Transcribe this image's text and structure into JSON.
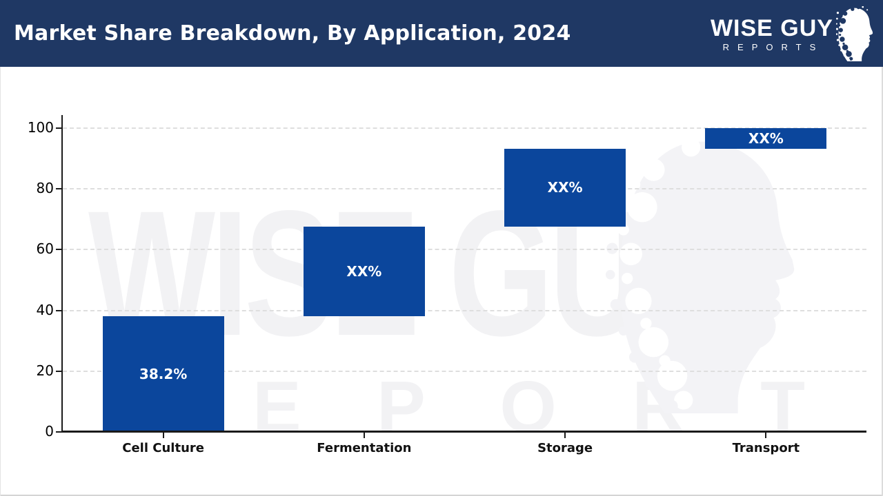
{
  "header": {
    "title": "Market Share Breakdown, By Application, 2024",
    "bg_color": "#1f3864",
    "logo": {
      "line1": "WISE GUY",
      "line2": "REPORTS"
    }
  },
  "watermark": {
    "line1": "WISE GUY",
    "line2": "REPORTS"
  },
  "chart_data": {
    "type": "bar",
    "subtype": "waterfall",
    "title": "Market Share Breakdown, By Application, 2024",
    "categories": [
      "Cell Culture",
      "Fermentation",
      "Storage",
      "Transport"
    ],
    "segments": [
      {
        "category": "Cell Culture",
        "start": 0,
        "end": 38.2,
        "label": "38.2%"
      },
      {
        "category": "Fermentation",
        "start": 38.2,
        "end": 67.6,
        "label": "XX%"
      },
      {
        "category": "Storage",
        "start": 67.6,
        "end": 93.2,
        "label": "XX%"
      },
      {
        "category": "Transport",
        "start": 93.2,
        "end": 100,
        "label": "XX%"
      }
    ],
    "xlabel": "",
    "ylabel": "",
    "ylim": [
      0,
      100
    ],
    "yticks": [
      0,
      20,
      40,
      60,
      80,
      100
    ],
    "grid": "horizontal-dashed",
    "legend": "none",
    "bar_color": "#0b469c",
    "bar_label_color": "#ffffff",
    "axis_color": "#1a1a1a"
  }
}
